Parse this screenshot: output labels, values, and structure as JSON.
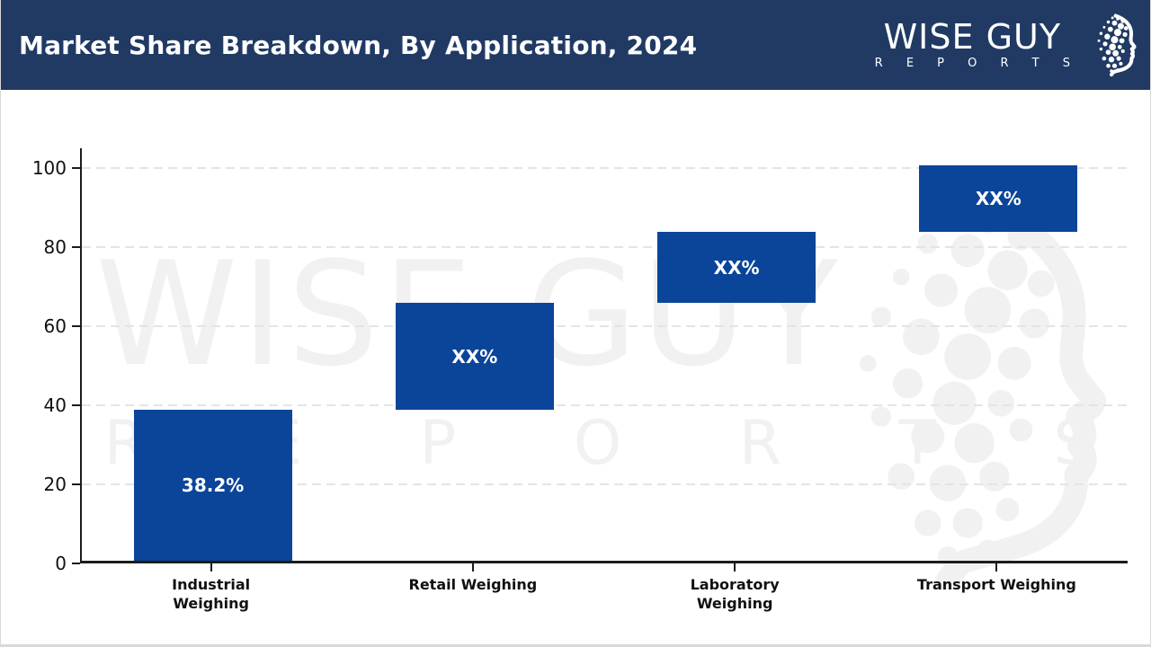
{
  "header": {
    "title": "Market Share Breakdown, By Application, 2024",
    "logo": {
      "line1": "WISE GUY",
      "line2": "R E P O R T S"
    }
  },
  "watermark": {
    "line1": "WISE GUY",
    "line2": "R E P O R T S"
  },
  "colors": {
    "header_bg": "#203a64",
    "bar": "#0a4599",
    "bar_label": "#ffffff",
    "watermark": "#f1f1f1",
    "axis": "#1c1c1c"
  },
  "chart_data": {
    "type": "bar",
    "subtype": "waterfall",
    "title": "Market Share Breakdown, By Application, 2024",
    "categories": [
      "Industrial\nWeighing",
      "Retail Weighing",
      "Laboratory\nWeighing",
      "Transport Weighing"
    ],
    "segments": [
      {
        "category": "Industrial Weighing",
        "start": 0,
        "end": 38.2,
        "value": 38.2,
        "label": "38.2%"
      },
      {
        "category": "Retail Weighing",
        "start": 38.2,
        "end": 65.2,
        "value": 27.0,
        "label": "XX%"
      },
      {
        "category": "Laboratory Weighing",
        "start": 65.2,
        "end": 83.2,
        "value": 18.0,
        "label": "XX%"
      },
      {
        "category": "Transport Weighing",
        "start": 83.2,
        "end": 100,
        "value": 16.8,
        "label": "XX%"
      }
    ],
    "yticks": [
      0,
      20,
      40,
      60,
      80,
      100
    ],
    "ylim": [
      0,
      105
    ],
    "xlabel": "",
    "ylabel": "",
    "grid": "horizontal-dashed",
    "legend": "none"
  }
}
